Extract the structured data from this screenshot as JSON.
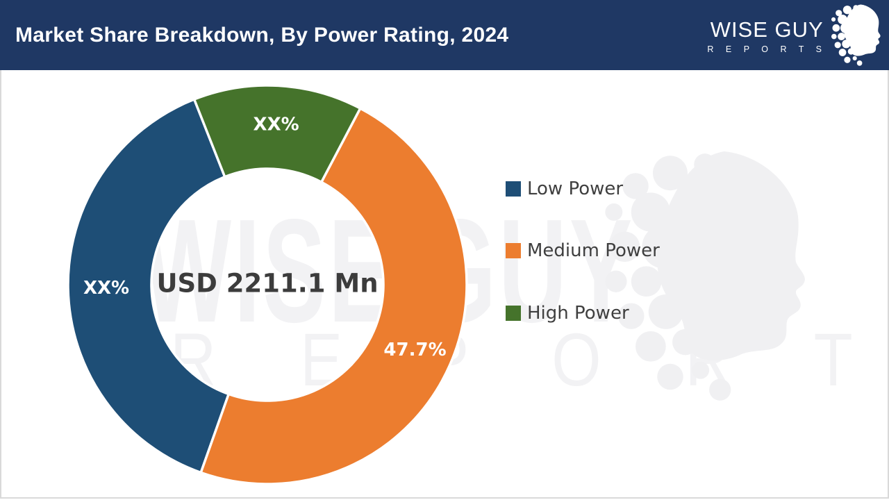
{
  "header": {
    "title": "Market Share Breakdown, By Power Rating, 2024",
    "logo": {
      "line1": "WISE GUY",
      "line2": "R E P O R T S"
    },
    "bg_color": "#1F3864"
  },
  "watermark": {
    "line1": "WISE GUY",
    "line2": "R E P O R T S"
  },
  "chart_data": {
    "type": "donut",
    "title": "Market Share Breakdown, By Power Rating, 2024",
    "center_label": "USD 2211.1 Mn",
    "start_angle_deg": 199.5,
    "direction": "clockwise",
    "draw_order": [
      0,
      2,
      1
    ],
    "legend_position": "right",
    "gap_color": "#ffffff",
    "segments": [
      {
        "name": "Low Power",
        "value": 38.6,
        "display_label": "XX%",
        "color": "#1E4E76"
      },
      {
        "name": "Medium Power",
        "value": 47.7,
        "display_label": "47.7%",
        "color": "#EC7D2F"
      },
      {
        "name": "High Power",
        "value": 13.7,
        "display_label": "XX%",
        "color": "#45732B"
      }
    ]
  }
}
